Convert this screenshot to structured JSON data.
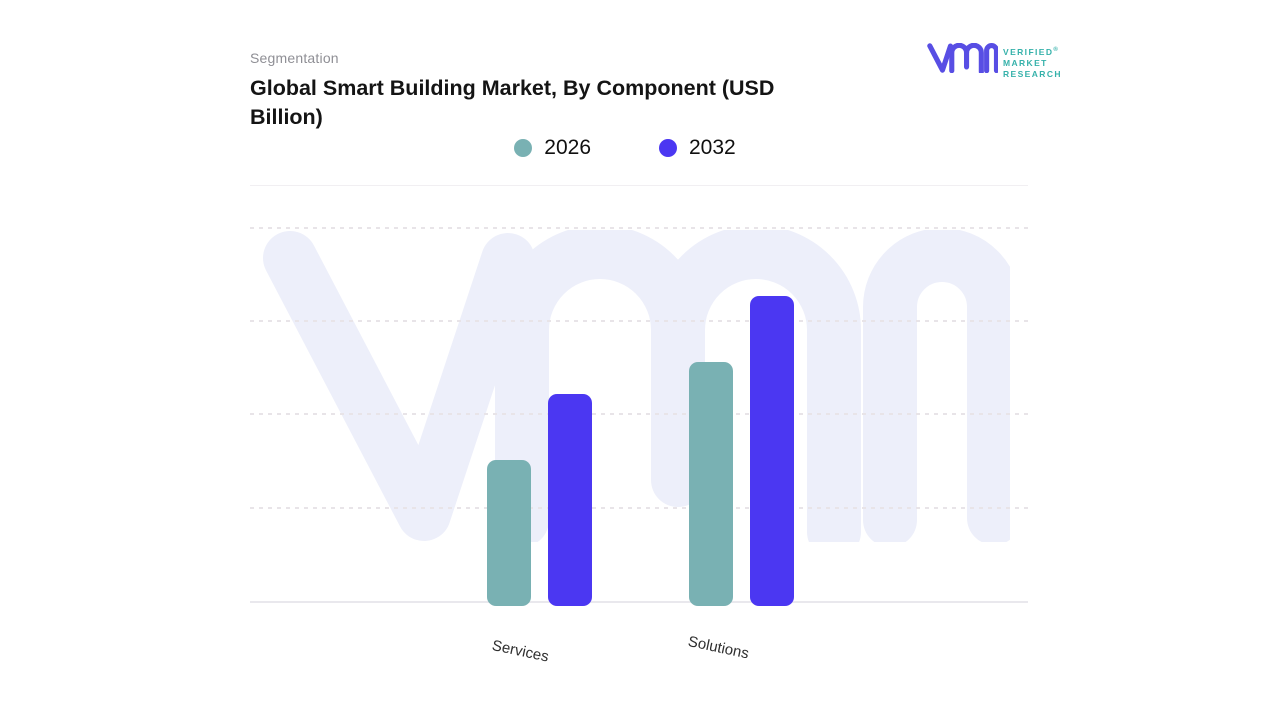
{
  "header": {
    "eyebrow": "Segmentation",
    "title": "Global Smart Building Market, By Component (USD Billion)"
  },
  "logo": {
    "monogram": "vmr",
    "line1": "VERIFIED",
    "line2": "MARKET",
    "line3": "RESEARCH",
    "registered_mark": "®",
    "monogram_color": "#584ee4",
    "text_color": "#35b1aa"
  },
  "legend": [
    {
      "label": "2026",
      "color": "#79b1b3"
    },
    {
      "label": "2032",
      "color": "#4b37f2"
    }
  ],
  "chart_data": {
    "type": "bar",
    "title": "Global Smart Building Market, By Component (USD Billion)",
    "categories": [
      "Services",
      "Solutions"
    ],
    "series": [
      {
        "name": "2026",
        "color": "#79b1b3",
        "values": [
          1.55,
          2.6
        ]
      },
      {
        "name": "2032",
        "color": "#4b37f2",
        "values": [
          2.25,
          3.3
        ]
      }
    ],
    "xlabel": "",
    "ylabel": "",
    "ylim": [
      0,
      4
    ],
    "y_axis_tick_labels_visible": false,
    "grid": "horizontal-dashed",
    "legend_position": "top-center",
    "watermark_color": "#edeffa",
    "note": "Values estimated in gridline units; no numeric axis labels are shown in the figure."
  }
}
